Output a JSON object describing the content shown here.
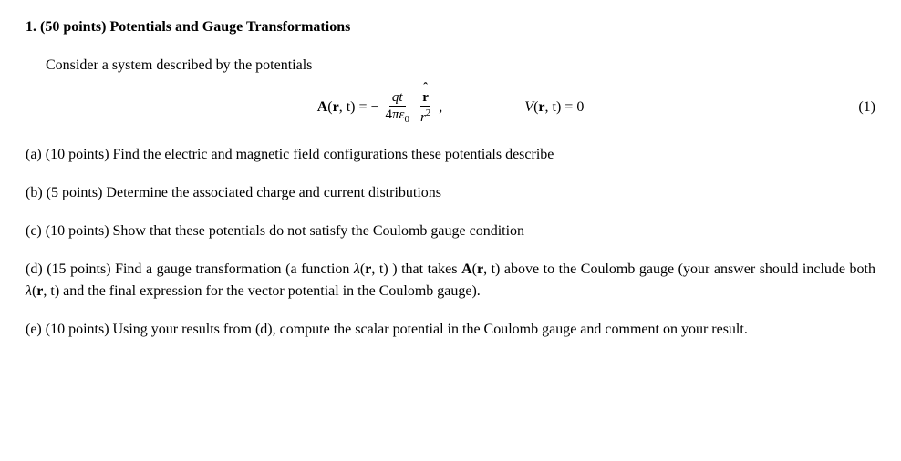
{
  "title": "1. (50 points) Potentials and Gauge Transformations",
  "intro": "Consider a system described by the potentials",
  "eq1": {
    "lhs_A": "A",
    "lhs_args": "(r",
    "lhs_t": ", t) = −",
    "frac1_num": "qt",
    "frac1_den_4pie0": "4πε",
    "frac1_den_sub": "0",
    "frac2_num_r": "r",
    "frac2_num_hat": "ˆ",
    "frac2_den_r": "r",
    "frac2_den_sup": "2",
    "comma": ",",
    "v_lhs": "V",
    "v_args": "(r",
    "v_t": ", t) = 0",
    "num": "(1)"
  },
  "parts": {
    "a": "(a) (10 points) Find the electric and magnetic field configurations these potentials describe",
    "b": "(b) (5 points) Determine the associated charge and current distributions",
    "c": "(c) (10 points) Show that these potentials do not satisfy the Coulomb gauge condition",
    "d_pre": "(d) (15 points) Find a gauge transformation (a function ",
    "d_lambda": "λ",
    "d_lambda_args": "(r",
    "d_lambda_t": ", t) ) that takes ",
    "d_A": "A",
    "d_A_args": "(r",
    "d_A_t": ", t) above to the Coulomb gauge (your answer should include both ",
    "d_lambda2": "λ",
    "d_lambda2_args": "(r",
    "d_lambda2_t": ", t) and the final expression for the vector potential in the Coulomb gauge).",
    "e": "(e) (10 points) Using your results from (d), compute the scalar potential in the Coulomb gauge and comment on your result."
  }
}
